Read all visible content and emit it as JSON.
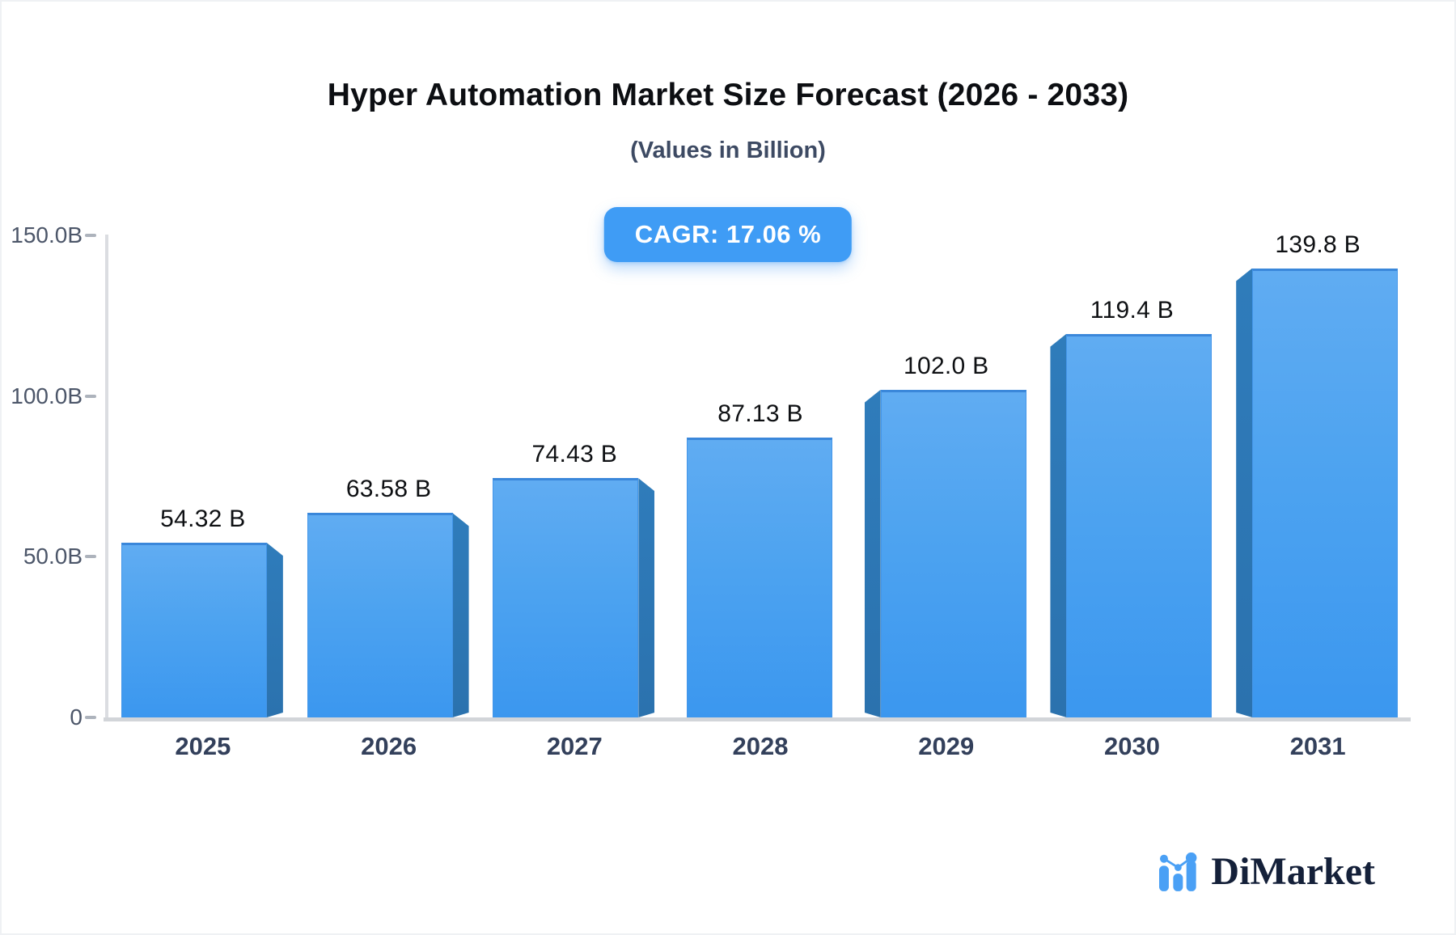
{
  "header": {
    "title": "Hyper Automation Market Size Forecast (2026 - 2033)",
    "subtitle": "(Values in Billion)",
    "cagr_badge": "CAGR: 17.06 %"
  },
  "chart_data": {
    "type": "bar",
    "title": "Hyper Automation Market Size Forecast (2026 - 2033)",
    "subtitle": "(Values in Billion)",
    "annotation": "CAGR: 17.06 %",
    "categories": [
      "2025",
      "2026",
      "2027",
      "2028",
      "2029",
      "2030",
      "2031"
    ],
    "values": [
      54.32,
      63.58,
      74.43,
      87.13,
      102.0,
      119.4,
      139.8
    ],
    "value_labels": [
      "54.32 B",
      "63.58 B",
      "74.43 B",
      "87.13 B",
      "102.0 B",
      "119.4 B",
      "139.8 B"
    ],
    "xlabel": "",
    "ylabel": "",
    "ylim": [
      0,
      150
    ],
    "ytick_values": [
      150,
      100,
      50,
      0
    ],
    "ytick_labels": [
      "150.0B",
      "100.0B",
      "50.0B",
      "0"
    ],
    "grid": false,
    "legend": false,
    "bar_color": "#3b97ef",
    "bar_side_color": "#2d76b4",
    "style": "pseudo-3d bars, side bevel faces toward center"
  },
  "logo": {
    "text": "DiMarket",
    "icon": "mini-bar-chart-icon",
    "navy": "#142039",
    "blue": "#4aa0f5"
  },
  "colors": {
    "badge_bg": "#3f9cf5",
    "axis_line": "#dbdde1",
    "baseline": "#d2d5d9",
    "y_label": "#4c5669",
    "x_label": "#33405b"
  }
}
